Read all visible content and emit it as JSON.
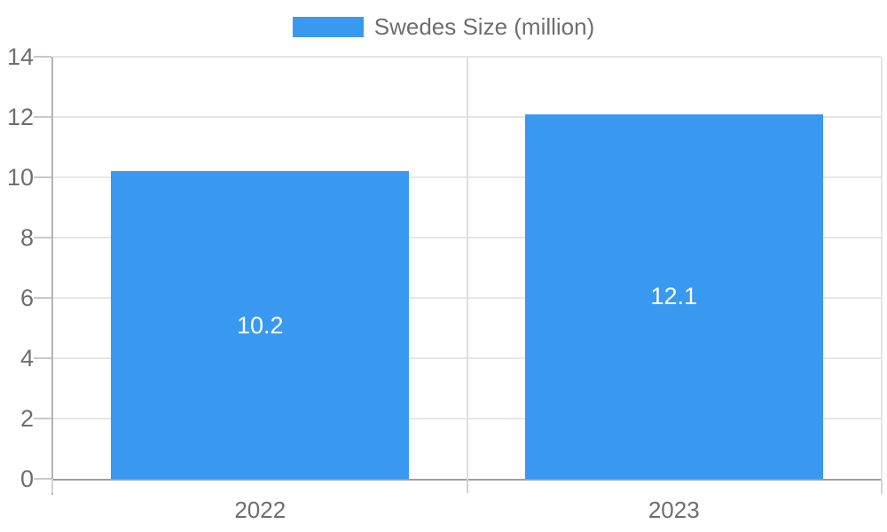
{
  "chart_data": {
    "type": "bar",
    "title": "Swedes Size (million)",
    "categories": [
      "2022",
      "2023"
    ],
    "series": [
      {
        "name": "Swedes Size (million)",
        "values": [
          10.2,
          12.1
        ]
      }
    ],
    "value_labels": [
      "10.2",
      "12.1"
    ],
    "ylim": [
      0,
      14
    ],
    "ytick_step": 2,
    "ytick_labels": [
      "0",
      "2",
      "4",
      "6",
      "8",
      "10",
      "12",
      "14"
    ],
    "grid": true,
    "legend_position": "top",
    "bar_width_fraction": 0.72
  },
  "colors": {
    "bar": "#3999F0",
    "value_label": "#ffffff",
    "tick_text": "#6e6e6e",
    "legend_text": "#6e6e6e",
    "grid": "#e6e6e6",
    "axis": "#9e9e9e"
  }
}
